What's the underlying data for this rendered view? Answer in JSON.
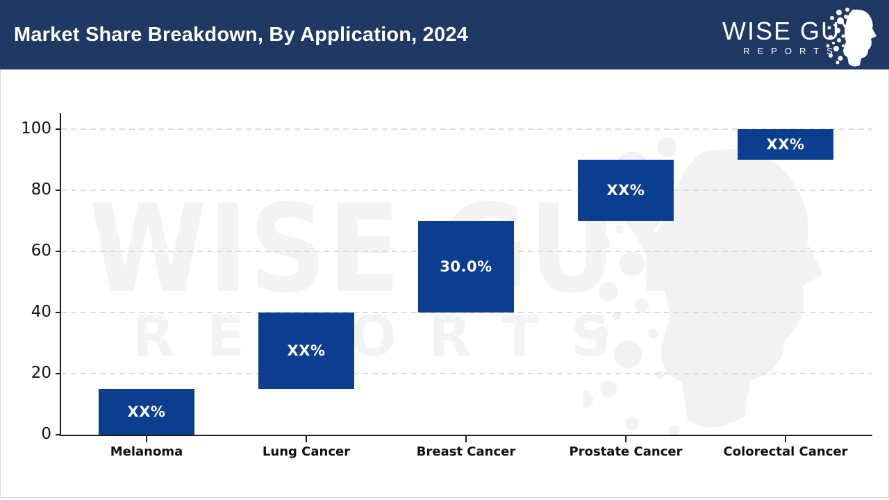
{
  "header": {
    "title": "Market Share Breakdown, By Application, 2024",
    "logo": {
      "brand": "WISE GUY",
      "sub": "REPORTS"
    }
  },
  "watermark": {
    "brand": "WISE GUY",
    "sub": "REPORTS"
  },
  "chart_data": {
    "type": "bar",
    "subtype": "floating-segment (waterfall style)",
    "title": "Market Share Breakdown, By Application, 2024",
    "categories": [
      "Melanoma",
      "Lung Cancer",
      "Breast Cancer",
      "Prostate Cancer",
      "Colorectal Cancer"
    ],
    "series": [
      {
        "name": "Market Share (%)",
        "segments": [
          {
            "category": "Melanoma",
            "start": 0,
            "end": 15,
            "label": "XX%"
          },
          {
            "category": "Lung Cancer",
            "start": 15,
            "end": 40,
            "label": "XX%"
          },
          {
            "category": "Breast Cancer",
            "start": 40,
            "end": 70,
            "label": "30.0%"
          },
          {
            "category": "Prostate Cancer",
            "start": 70,
            "end": 90,
            "label": "XX%"
          },
          {
            "category": "Colorectal Cancer",
            "start": 90,
            "end": 100,
            "label": "XX%"
          }
        ]
      }
    ],
    "xlabel": "",
    "ylabel": "",
    "ylim": [
      0,
      105
    ],
    "yticks": [
      0,
      20,
      40,
      60,
      80,
      100
    ],
    "grid": "horizontal dashed",
    "legend": "none",
    "colors": {
      "bar": "#0c3e8f",
      "header_bg": "#1f3864",
      "grid": "#dcdcdc",
      "axis": "#1a1a1a",
      "bar_label_text": "#ffffff",
      "watermark": "#f3f3f3"
    }
  }
}
